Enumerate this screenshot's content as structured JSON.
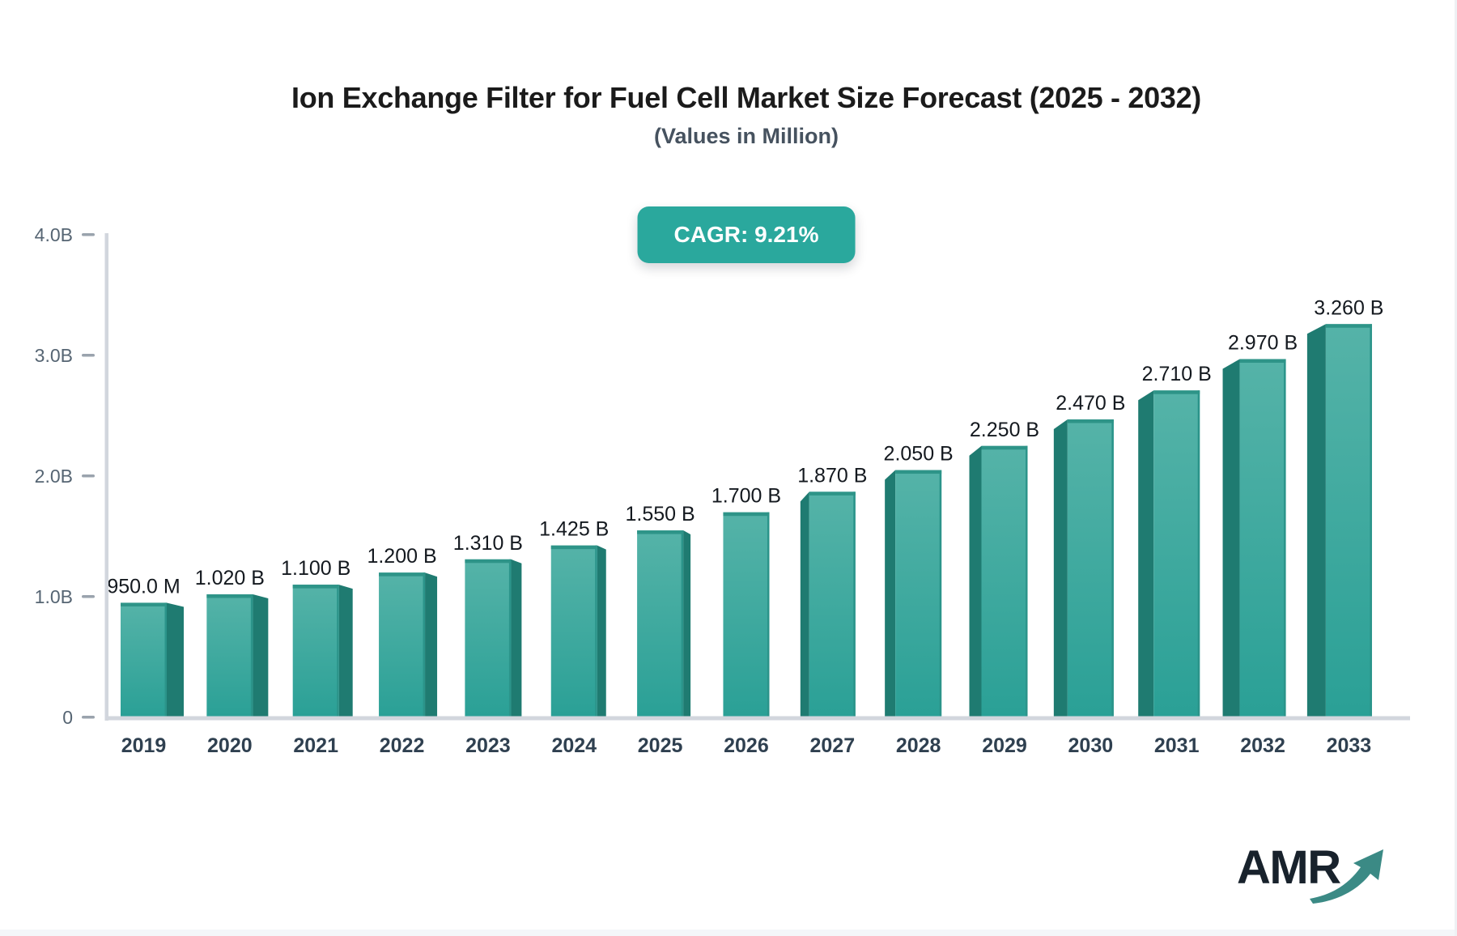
{
  "header": {
    "title": "Ion Exchange Filter for Fuel Cell Market Size Forecast (2025 - 2032)",
    "subtitle": "(Values in Million)",
    "cagr_badge": "CAGR: 9.21%"
  },
  "logo": {
    "text": "AMR",
    "arrow_icon": "trend-up-arrow"
  },
  "colors": {
    "badge_bg": "#2aa89d",
    "bar_front_top": "#55b3a8",
    "bar_front_bottom": "#2aa096",
    "bar_side": "#1f7b71",
    "bar_cap": "#2e9488",
    "bar_right_edge": "#2b948a",
    "axis_line": "#d2d6dd",
    "tick_dash": "#9aa3ad",
    "ytick_text": "#566573",
    "xtick_text": "#2f4050",
    "value_text": "#14191f",
    "logo_arrow": "#3b8a85"
  },
  "chart_data": {
    "type": "bar",
    "title": "Ion Exchange Filter for Fuel Cell Market Size Forecast (2025 - 2032)",
    "subtitle": "(Values in Million)",
    "annotation": "CAGR: 9.21%",
    "categories": [
      "2019",
      "2020",
      "2021",
      "2022",
      "2023",
      "2024",
      "2025",
      "2026",
      "2027",
      "2028",
      "2029",
      "2030",
      "2031",
      "2032",
      "2033"
    ],
    "values_millions": [
      950,
      1020,
      1100,
      1200,
      1310,
      1425,
      1550,
      1700,
      1870,
      2050,
      2250,
      2470,
      2710,
      2970,
      3260
    ],
    "bar_labels": [
      "950.0 M",
      "1.020 B",
      "1.100 B",
      "1.200 B",
      "1.310 B",
      "1.425 B",
      "1.550 B",
      "1.700 B",
      "1.870 B",
      "2.050 B",
      "2.250 B",
      "2.470 B",
      "2.710 B",
      "2.970 B",
      "3.260 B"
    ],
    "xlabel": "",
    "ylabel": "",
    "ylim_millions": [
      0,
      4000
    ],
    "grid": false,
    "legend": false,
    "y_axis": {
      "ticks": [
        {
          "label": "4.0B",
          "value_millions": 4000
        },
        {
          "label": "3.0B",
          "value_millions": 3000
        },
        {
          "label": "2.0B",
          "value_millions": 2000
        },
        {
          "label": "1.0B",
          "value_millions": 1000
        },
        {
          "label": "0",
          "value_millions": 0
        }
      ]
    }
  }
}
